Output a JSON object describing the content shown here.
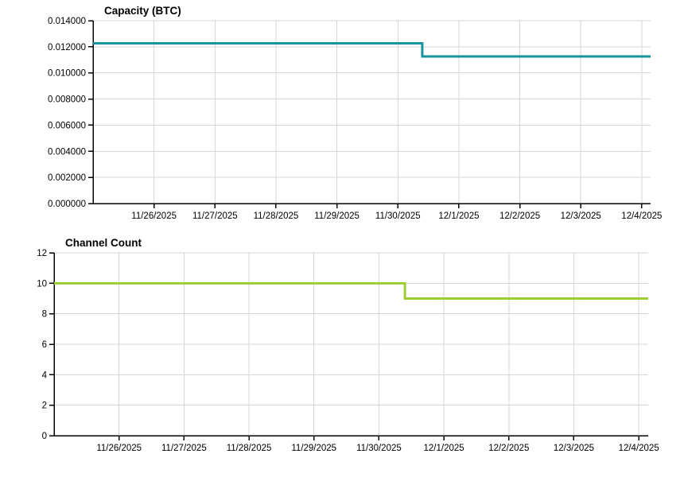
{
  "styles": {
    "background": "#ffffff",
    "grid_color": "#d6d6d6",
    "axis_color": "#000000",
    "label_color": "#000000",
    "title_color": "#000000"
  },
  "chart_data": [
    {
      "id": "capacity",
      "type": "line",
      "title": "Capacity (BTC)",
      "legend": "none",
      "grid": true,
      "x_axis": {
        "tick_labels": [
          "11/26/2025",
          "11/27/2025",
          "11/28/2025",
          "11/29/2025",
          "11/30/2025",
          "12/1/2025",
          "12/2/2025",
          "12/3/2025",
          "12/4/2025"
        ],
        "tick_positions_days": [
          0,
          1,
          2,
          3,
          4,
          5,
          6,
          7,
          8
        ],
        "range_days": [
          -1.0,
          8.145
        ]
      },
      "y_axis": {
        "ticks": [
          0,
          0.002,
          0.004,
          0.006,
          0.008,
          0.01,
          0.012,
          0.014
        ],
        "range": [
          0,
          0.014
        ],
        "decimals": 6
      },
      "series": [
        {
          "name": "Capacity (BTC)",
          "color": "#16949c",
          "width": 3,
          "points": [
            [
              -1.0,
              0.012263
            ],
            [
              4.4,
              0.012263
            ],
            [
              4.4,
              0.011263
            ],
            [
              8.145,
              0.011263
            ]
          ]
        }
      ]
    },
    {
      "id": "channel-count",
      "type": "line",
      "title": "Channel Count",
      "legend": "none",
      "grid": true,
      "x_axis": {
        "tick_labels": [
          "11/26/2025",
          "11/27/2025",
          "11/28/2025",
          "11/29/2025",
          "11/30/2025",
          "12/1/2025",
          "12/2/2025",
          "12/3/2025",
          "12/4/2025"
        ],
        "tick_positions_days": [
          0,
          1,
          2,
          3,
          4,
          5,
          6,
          7,
          8
        ],
        "range_days": [
          -1.0,
          8.145
        ]
      },
      "y_axis": {
        "ticks": [
          0,
          2,
          4,
          6,
          8,
          10,
          12
        ],
        "range": [
          0,
          12
        ],
        "decimals": 0
      },
      "series": [
        {
          "name": "Channel Count",
          "color": "#9ccd33",
          "width": 3,
          "points": [
            [
              -1.0,
              10
            ],
            [
              4.4,
              10
            ],
            [
              4.4,
              9
            ],
            [
              8.145,
              9
            ]
          ]
        }
      ]
    }
  ]
}
